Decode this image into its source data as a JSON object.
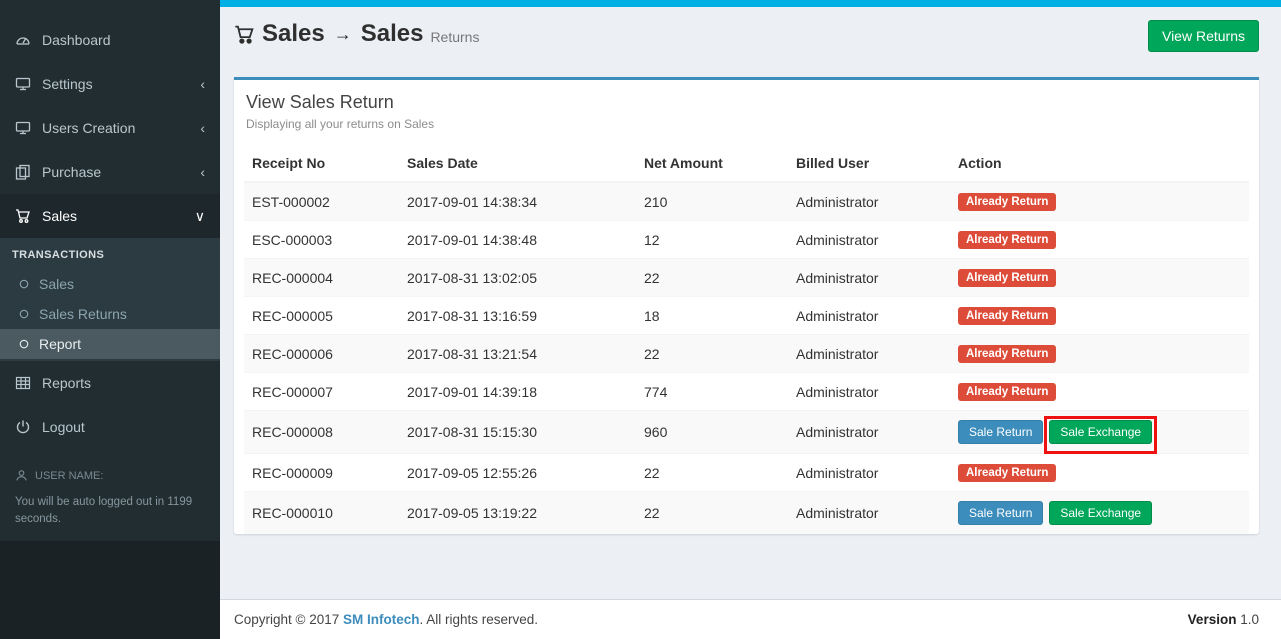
{
  "sidebar": {
    "menu_top": [
      {
        "label": "Dashboard"
      },
      {
        "label": "Settings"
      },
      {
        "label": "Users Creation"
      },
      {
        "label": "Purchase"
      },
      {
        "label": "Sales"
      }
    ],
    "submenu_header": "TRANSACTIONS",
    "submenu": [
      {
        "label": "Sales"
      },
      {
        "label": "Sales Returns"
      },
      {
        "label": "Report"
      }
    ],
    "menu_bottom": [
      {
        "label": "Reports"
      },
      {
        "label": "Logout"
      }
    ],
    "user_label": "USER NAME:",
    "auto_logout_notice": "You will be auto logged out in 1199 seconds."
  },
  "header": {
    "section": "Sales",
    "page": "Sales",
    "page_sub": "Returns",
    "arrow": "→",
    "view_returns_button": "View Returns"
  },
  "card": {
    "title": "View Sales Return",
    "subtitle": "Displaying all your returns on Sales"
  },
  "table": {
    "columns": [
      "Receipt No",
      "Sales Date",
      "Net Amount",
      "Billed User",
      "Action"
    ],
    "rows": [
      {
        "receipt": "EST-000002",
        "date": "2017-09-01 14:38:34",
        "amount": "210",
        "user": "Administrator",
        "actions": [
          {
            "type": "already_return"
          }
        ]
      },
      {
        "receipt": "ESC-000003",
        "date": "2017-09-01 14:38:48",
        "amount": "12",
        "user": "Administrator",
        "actions": [
          {
            "type": "already_return"
          }
        ]
      },
      {
        "receipt": "REC-000004",
        "date": "2017-08-31 13:02:05",
        "amount": "22",
        "user": "Administrator",
        "actions": [
          {
            "type": "already_return"
          }
        ]
      },
      {
        "receipt": "REC-000005",
        "date": "2017-08-31 13:16:59",
        "amount": "18",
        "user": "Administrator",
        "actions": [
          {
            "type": "already_return"
          }
        ]
      },
      {
        "receipt": "REC-000006",
        "date": "2017-08-31 13:21:54",
        "amount": "22",
        "user": "Administrator",
        "actions": [
          {
            "type": "already_return"
          }
        ]
      },
      {
        "receipt": "REC-000007",
        "date": "2017-09-01 14:39:18",
        "amount": "774",
        "user": "Administrator",
        "actions": [
          {
            "type": "already_return"
          }
        ]
      },
      {
        "receipt": "REC-000008",
        "date": "2017-08-31 15:15:30",
        "amount": "960",
        "user": "Administrator",
        "actions": [
          {
            "type": "sale_return"
          },
          {
            "type": "sale_exchange",
            "annotated": true
          }
        ]
      },
      {
        "receipt": "REC-000009",
        "date": "2017-09-05 12:55:26",
        "amount": "22",
        "user": "Administrator",
        "actions": [
          {
            "type": "already_return"
          }
        ]
      },
      {
        "receipt": "REC-000010",
        "date": "2017-09-05 13:19:22",
        "amount": "22",
        "user": "Administrator",
        "actions": [
          {
            "type": "sale_return"
          },
          {
            "type": "sale_exchange"
          }
        ]
      }
    ]
  },
  "badges": {
    "already_return": "Already Return",
    "sale_return": "Sale Return",
    "sale_exchange": "Sale Exchange"
  },
  "footer": {
    "copyright_prefix": "Copyright © 2017 ",
    "brand": "SM Infotech",
    "copyright_suffix": ". All rights reserved.",
    "version_label": "Version",
    "version_value": "1.0"
  },
  "colors": {
    "topbar": "#00b0e4",
    "card_border": "#3c8dbc",
    "button_green": "#00a65a",
    "button_blue": "#3c8dbc",
    "badge_red": "#dd4b39",
    "annotation_red": "#ee1111",
    "sidebar_bg": "#222d32"
  }
}
